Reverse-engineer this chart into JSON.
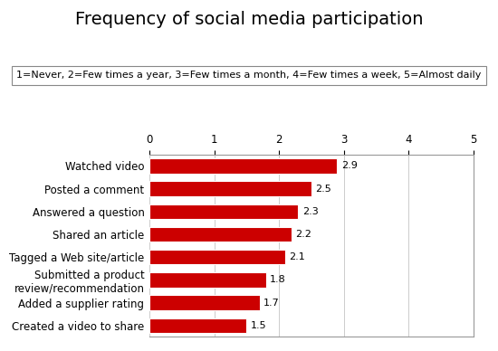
{
  "title": "Frequency of social media participation",
  "subtitle": "1=Never, 2=Few times a year, 3=Few times a month, 4=Few times a week, 5=Almost daily",
  "categories": [
    "Created a video to share",
    "Added a supplier rating",
    "Submitted a product\nreview/recommendation",
    "Tagged a Web site/article",
    "Shared an article",
    "Answered a question",
    "Posted a comment",
    "Watched video"
  ],
  "values": [
    1.5,
    1.7,
    1.8,
    2.1,
    2.2,
    2.3,
    2.5,
    2.9
  ],
  "bar_color": "#cc0000",
  "xlim": [
    0,
    5
  ],
  "xticks": [
    0,
    1,
    2,
    3,
    4,
    5
  ],
  "background_color": "#ffffff",
  "title_fontsize": 14,
  "label_fontsize": 8.5,
  "subtitle_fontsize": 8,
  "value_fontsize": 8
}
